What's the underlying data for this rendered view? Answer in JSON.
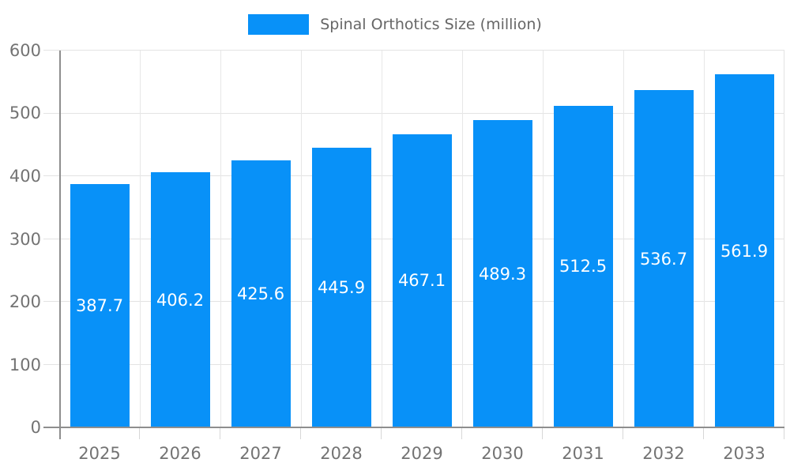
{
  "legend": {
    "label": "Spinal Orthotics Size (million)"
  },
  "colors": {
    "bar": "#0891f8",
    "grid": "#e3e3e3",
    "axis": "#8e8e8e",
    "tick_label": "#737373",
    "legend_text": "#666666",
    "value_label": "#ffffff",
    "background": "#ffffff"
  },
  "chart_data": {
    "type": "bar",
    "title": "Spinal Orthotics Size (million)",
    "categories": [
      "2025",
      "2026",
      "2027",
      "2028",
      "2029",
      "2030",
      "2031",
      "2032",
      "2033"
    ],
    "values": [
      387.7,
      406.2,
      425.6,
      445.9,
      467.1,
      489.3,
      512.5,
      536.7,
      561.9
    ],
    "xlabel": "",
    "ylabel": "",
    "ylim": [
      0,
      600
    ],
    "yticks": [
      0,
      100,
      200,
      300,
      400,
      500,
      600
    ],
    "grid": true,
    "legend_position": "top",
    "value_labels": "inside-center"
  }
}
